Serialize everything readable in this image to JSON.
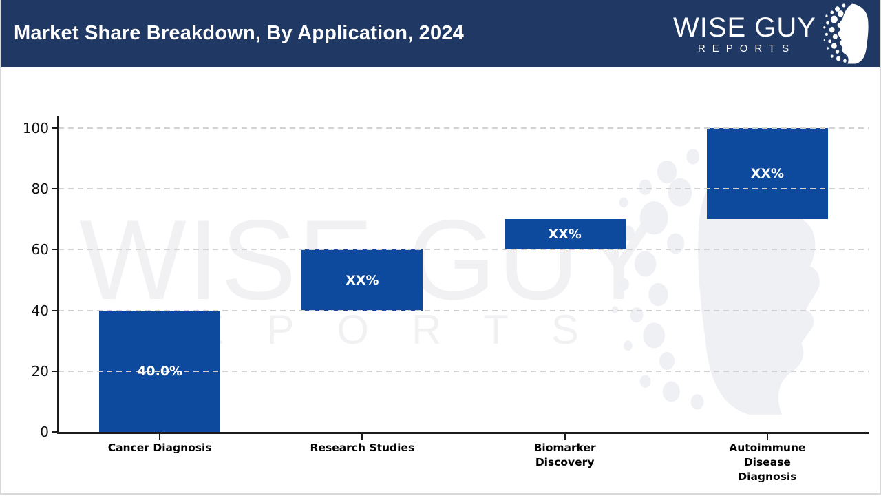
{
  "header": {
    "title": "Market Share Breakdown, By Application, 2024",
    "bg_color": "#1f3864"
  },
  "logo": {
    "line1": "WISE GUY",
    "line2": "REPORTS"
  },
  "watermark": {
    "line1": "WISE GUY",
    "line2": "REPORTS"
  },
  "chart_data": {
    "type": "bar",
    "subtype": "waterfall",
    "title": "Market Share Breakdown, By Application, 2024",
    "categories": [
      "Cancer Diagnosis",
      "Research Studies",
      "Biomarker Discovery",
      "Autoimmune Disease Diagnosis"
    ],
    "category_label_lines": [
      [
        "Cancer Diagnosis"
      ],
      [
        "Research Studies"
      ],
      [
        "Biomarker",
        "Discovery"
      ],
      [
        "Autoimmune Disease",
        "Diagnosis"
      ]
    ],
    "segments": [
      {
        "category": "Cancer Diagnosis",
        "start": 0,
        "end": 40,
        "label": "40.0%"
      },
      {
        "category": "Research Studies",
        "start": 40,
        "end": 60,
        "label": "XX%"
      },
      {
        "category": "Biomarker Discovery",
        "start": 60,
        "end": 70,
        "label": "XX%"
      },
      {
        "category": "Autoimmune Disease Diagnosis",
        "start": 70,
        "end": 100,
        "label": "XX%"
      }
    ],
    "y_ticks": [
      0,
      20,
      40,
      60,
      80,
      100
    ],
    "ylim": [
      0,
      104
    ],
    "xlabel": "",
    "ylabel": "",
    "grid": "dashed-horizontal",
    "legend": "none",
    "bar_color": "#0d4a9d",
    "bar_label_color": "#ffffff",
    "gridline_color": "#d2d2d2",
    "axis_color": "#1c1c1c"
  }
}
